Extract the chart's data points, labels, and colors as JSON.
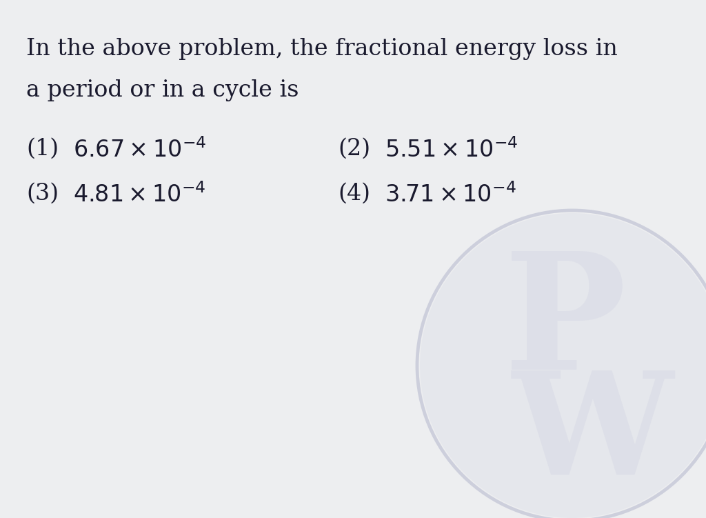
{
  "background_color": "#edeef0",
  "text_color": "#1a1a2e",
  "title_line1": "In the above problem, the fractional energy loss in",
  "title_line2": "a period or in a cycle is",
  "option_texts": [
    [
      "(1)",
      "$6.67 \\times 10^{-4}$"
    ],
    [
      "(2)",
      "$5.51 \\times 10^{-4}$"
    ],
    [
      "(3)",
      "$4.81 \\times 10^{-4}$"
    ],
    [
      "(4)",
      "$3.71 \\times 10^{-4}$"
    ]
  ],
  "watermark_circle_color": "#c5c8d8",
  "watermark_text_color": "#dddfe8",
  "watermark_ring_color": "#c0c3d4",
  "figsize": [
    10.24,
    7.51
  ],
  "dpi": 100
}
